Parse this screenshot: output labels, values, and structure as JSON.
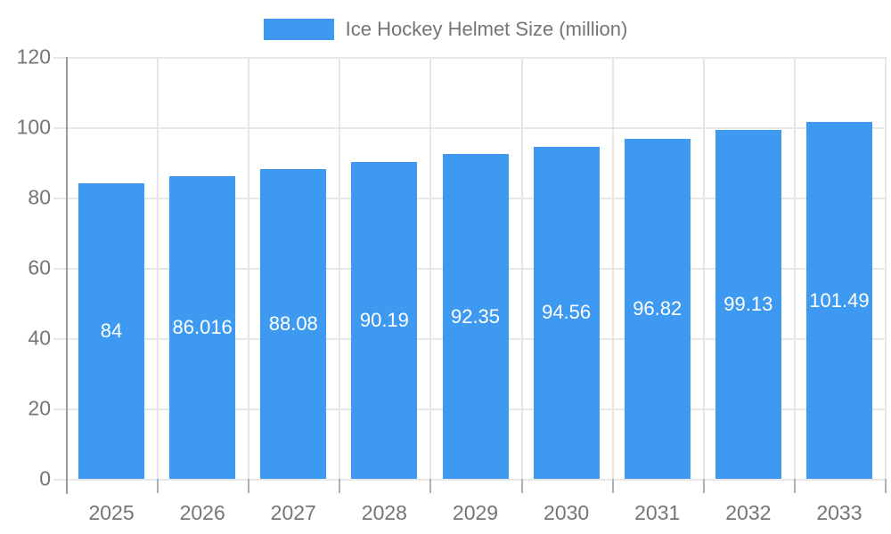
{
  "legend": {
    "label": "Ice Hockey Helmet Size (million)"
  },
  "colors": {
    "bar": "#3D9AF0",
    "axis_text": "#757575",
    "grid": "#E7E7E7",
    "axis_line": "#9A9A9A",
    "tick": "#B0B0B0",
    "value_text": "#FFFFFF",
    "background": "#FFFFFF"
  },
  "chart_data": {
    "type": "bar",
    "title": "",
    "legend": [
      "Ice Hockey Helmet Size (million)"
    ],
    "legend_position": "top",
    "categories": [
      "2025",
      "2026",
      "2027",
      "2028",
      "2029",
      "2030",
      "2031",
      "2032",
      "2033"
    ],
    "series": [
      {
        "name": "Ice Hockey Helmet Size (million)",
        "values": [
          84,
          86.016,
          88.08,
          90.19,
          92.35,
          94.56,
          96.82,
          99.13,
          101.49
        ],
        "value_labels": [
          "84",
          "86.016",
          "88.08",
          "90.19",
          "92.35",
          "94.56",
          "96.82",
          "99.13",
          "101.49"
        ]
      }
    ],
    "xlabel": "",
    "ylabel": "",
    "ylim": [
      0,
      120
    ],
    "yticks": [
      0,
      20,
      40,
      60,
      80,
      100,
      120
    ],
    "grid": true,
    "value_labels_inside": true
  }
}
